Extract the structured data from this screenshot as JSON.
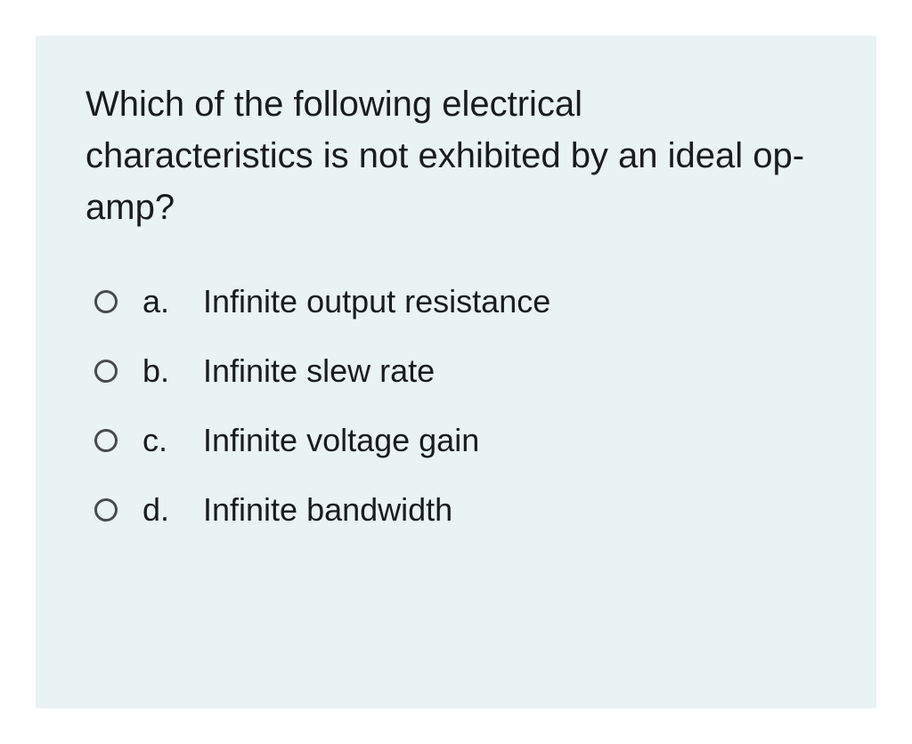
{
  "card": {
    "background_color": "#e9f3f4",
    "text_color": "#1b1b1b",
    "radio_border_color": "#4a4a4a"
  },
  "question": {
    "text": "Which of the following electrical characteristics is not exhibited by an ideal op-amp?",
    "fontsize": 40
  },
  "options": [
    {
      "letter": "a.",
      "text": "Infinite output resistance",
      "selected": false
    },
    {
      "letter": "b.",
      "text": "Infinite slew rate",
      "selected": false
    },
    {
      "letter": "c.",
      "text": "Infinite voltage gain",
      "selected": false
    },
    {
      "letter": "d.",
      "text": "Infinite bandwidth",
      "selected": false
    }
  ]
}
